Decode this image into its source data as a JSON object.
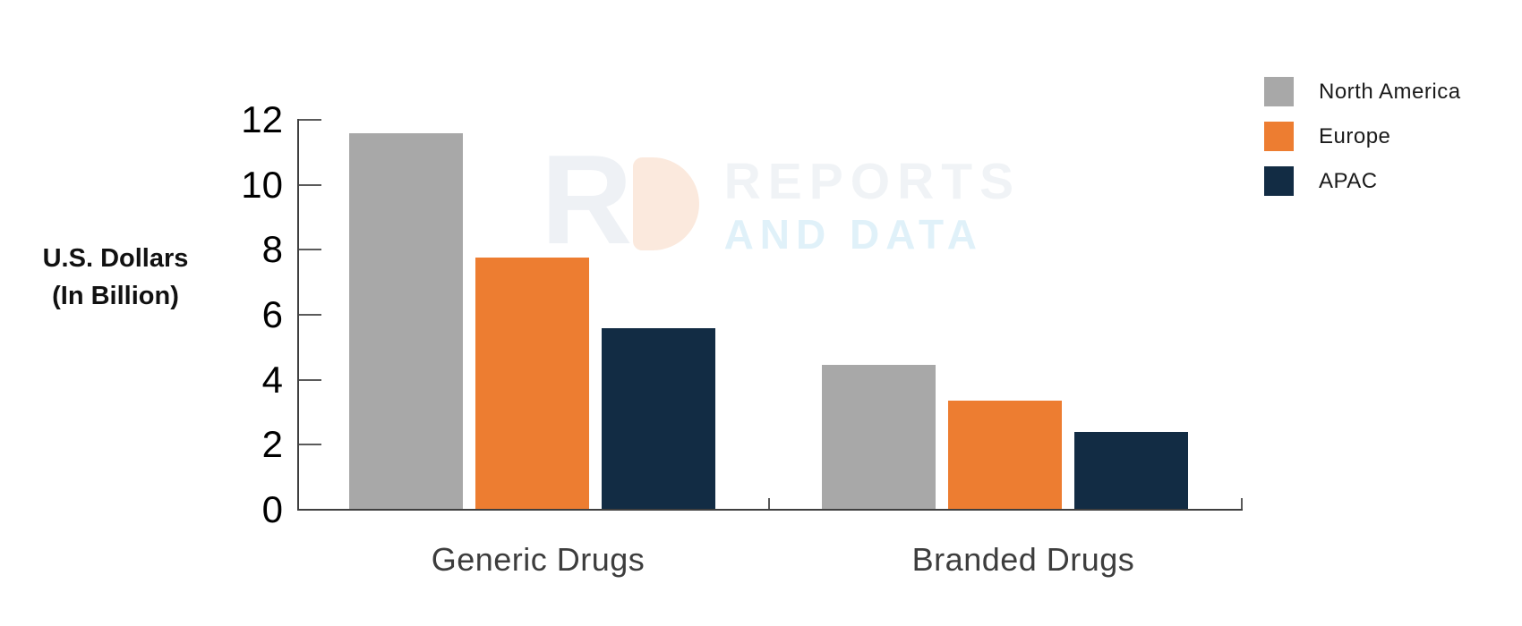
{
  "chart_data": {
    "type": "bar",
    "title": "",
    "categories": [
      "Generic Drugs",
      "Branded Drugs"
    ],
    "series": [
      {
        "name": "North America",
        "color": "#a8a8a8",
        "values": [
          11.6,
          4.45
        ]
      },
      {
        "name": "Europe",
        "color": "#ed7d31",
        "values": [
          7.75,
          3.35
        ]
      },
      {
        "name": "APAC",
        "color": "#122c44",
        "values": [
          5.6,
          2.4
        ]
      }
    ],
    "xlabel": "",
    "ylabel": "U.S. Dollars (In Billion)",
    "ylabel_lines": [
      "U.S. Dollars",
      "(In Billion)"
    ],
    "y_ticks": [
      0,
      2,
      4,
      6,
      8,
      10,
      12
    ],
    "ylim": [
      0,
      12
    ],
    "grid": false,
    "legend_position": "top-right",
    "bar_orientation": "vertical"
  },
  "watermark": {
    "logo_letter": "R",
    "line1": "REPORTS",
    "line2": "AND DATA"
  }
}
